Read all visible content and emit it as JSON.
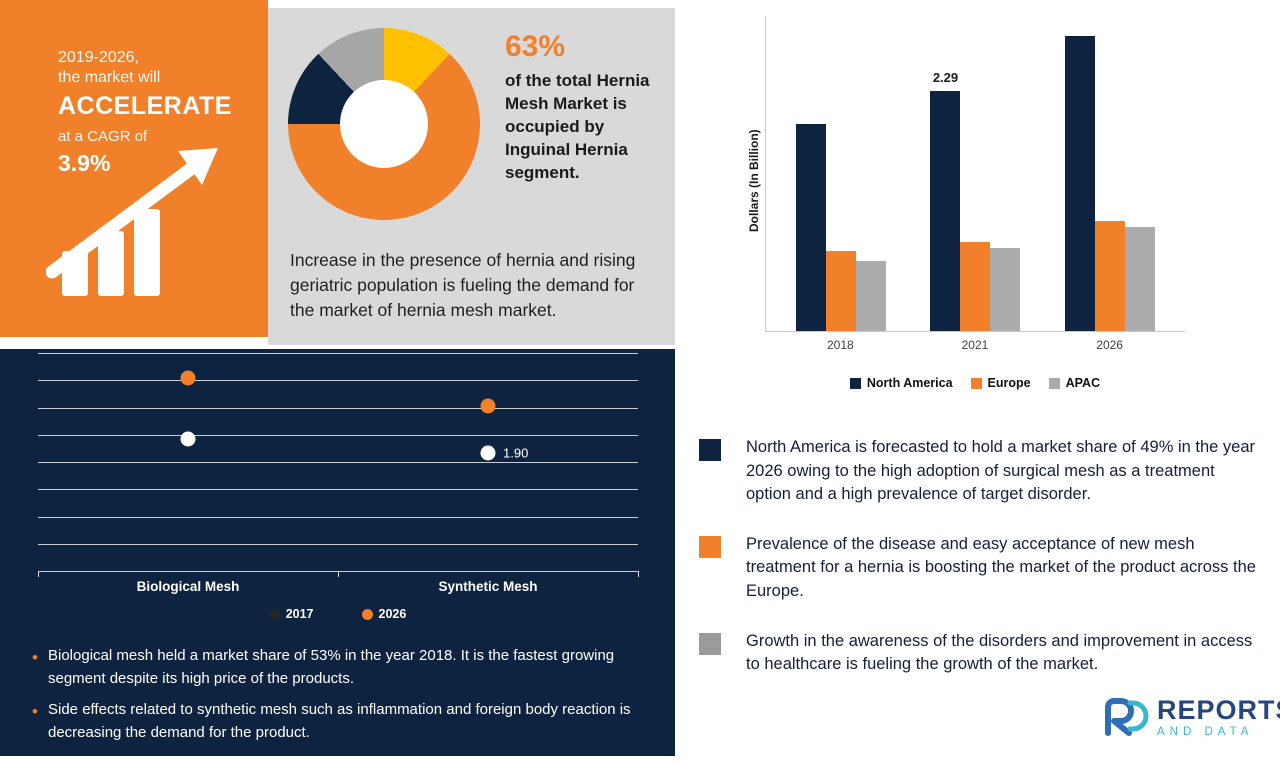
{
  "colors": {
    "orange": "#F0802A",
    "navy": "#0D2340",
    "card_gray": "#D9D9D9",
    "slice_gray": "#A6A6A6",
    "slice_yellow": "#FFC000",
    "bar_gray": "#ABABAB",
    "teal": "#38B8CC",
    "logo_blue": "#2F6EB5",
    "text_dark": "#1A1A1A"
  },
  "accelerate_card": {
    "line1": "2019-2026,",
    "line2": "the market will",
    "emphasis": "ACCELERATE",
    "line3": "at a CAGR of",
    "cagr": "3.9%"
  },
  "donut_section": {
    "stat": "63%",
    "stat_caption": "of the total Hernia Mesh Market is occupied by Inguinal Hernia segment.",
    "paragraph": "Increase in the presence of hernia and rising geriatric population is fueling the demand for the market of hernia mesh market."
  },
  "mesh_section": {
    "bullets": [
      "Biological mesh held a market share of 53% in the year 2018. It is the fastest growing segment despite its high price of the products.",
      "Side effects related to synthetic mesh such as inflammation and foreign body reaction is decreasing the demand for the product."
    ]
  },
  "right_panel": {
    "insights": [
      {
        "color": "#0D2340",
        "text": "North America is forecasted to hold a market share of 49% in the year 2026 owing to the high adoption of surgical mesh as a treatment option and a high prevalence of target disorder."
      },
      {
        "color": "#F0802A",
        "text": "Prevalence of the disease and easy acceptance of new mesh treatment for a hernia is boosting the market of the product across the Europe."
      },
      {
        "color": "#9B9B9B",
        "text": "Growth in the awareness of the disorders and improvement in access to healthcare is fueling the growth of the market."
      }
    ],
    "brand": {
      "name": "REPORTS",
      "tagline": "AND DATA"
    }
  },
  "chart_data": [
    {
      "name": "inguinal-donut",
      "type": "pie",
      "donut": true,
      "slices": [
        {
          "label": "Other segment",
          "value": 12,
          "color": "#FFC000"
        },
        {
          "label": "Inguinal Hernia",
          "value": 63,
          "color": "#F0802A"
        },
        {
          "label": "Other segment",
          "value": 13,
          "color": "#0D2340"
        },
        {
          "label": "Other segment",
          "value": 12,
          "color": "#A6A6A6"
        }
      ]
    },
    {
      "name": "mesh-share-dots",
      "type": "scatter",
      "categories": [
        "Biological Mesh",
        "Synthetic Mesh"
      ],
      "cat_centers": [
        25,
        75
      ],
      "series": [
        {
          "name": "2017",
          "marker_color": "#FFFFFF",
          "legend_color": "#262626",
          "values": [
            2.02,
            1.9
          ]
        },
        {
          "name": "2026",
          "marker_color": "#F0802A",
          "legend_color": "#F0802A",
          "values": [
            2.54,
            2.3
          ]
        }
      ],
      "data_labels": [
        {
          "series": "2017",
          "category": "Synthetic Mesh",
          "label": "1.90"
        }
      ],
      "ylim": [
        0.9,
        2.75
      ],
      "gridlines": 9,
      "legend_position": "bottom"
    },
    {
      "name": "regional-revenue-bars",
      "type": "bar",
      "categories": [
        "2018",
        "2021",
        "2026"
      ],
      "series": [
        {
          "name": "North America",
          "color": "#0D2340",
          "values": [
            1.97,
            2.29,
            2.81
          ]
        },
        {
          "name": "Europe",
          "color": "#F0802A",
          "values": [
            0.76,
            0.85,
            1.05
          ]
        },
        {
          "name": "APAC",
          "color": "#ABABAB",
          "values": [
            0.67,
            0.79,
            0.99
          ]
        }
      ],
      "ylabel": "Dollars (In Billion)",
      "ylim": [
        0,
        3
      ],
      "data_labels": [
        {
          "series": "North America",
          "category": "2021",
          "label": "2.29"
        }
      ],
      "legend_position": "bottom"
    }
  ]
}
